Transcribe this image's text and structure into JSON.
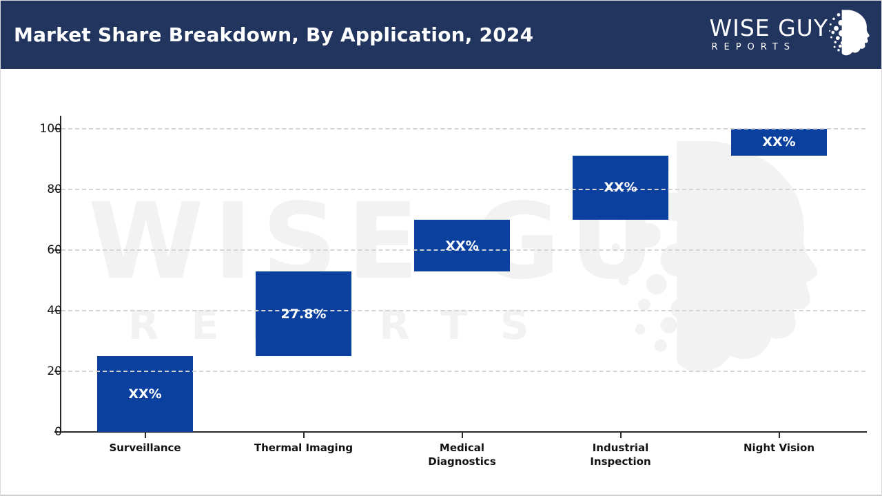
{
  "header": {
    "title": "Market Share Breakdown, By Application, 2024",
    "bg_color": "#22355e",
    "logo": {
      "line1": "WISE GUY",
      "line2": "REPORTS"
    }
  },
  "watermark": {
    "line1": "WISE GUY",
    "line2": "REPORTS"
  },
  "chart_data": {
    "type": "bar",
    "subtype": "waterfall-floating-bars",
    "title": "Market Share Breakdown, By Application, 2024",
    "xlabel": "",
    "ylabel": "",
    "ylim": [
      0,
      100
    ],
    "y_ticks": [
      0,
      20,
      40,
      60,
      80,
      100
    ],
    "grid": true,
    "grid_style": "dashed",
    "bar_color": "#0b409e",
    "label_color": "#ffffff",
    "categories": [
      "Surveillance",
      "Thermal Imaging",
      "Medical\nDiagnostics",
      "Industrial\nInspection",
      "Night Vision"
    ],
    "segments": [
      {
        "category": "Surveillance",
        "start": 0,
        "end": 25,
        "label": "XX%"
      },
      {
        "category": "Thermal Imaging",
        "start": 25,
        "end": 52.8,
        "label": "27.8%"
      },
      {
        "category": "Medical Diagnostics",
        "start": 52.8,
        "end": 70,
        "label": "XX%"
      },
      {
        "category": "Industrial Inspection",
        "start": 70,
        "end": 91,
        "label": "XX%"
      },
      {
        "category": "Night Vision",
        "start": 91,
        "end": 100,
        "label": "XX%"
      }
    ]
  }
}
